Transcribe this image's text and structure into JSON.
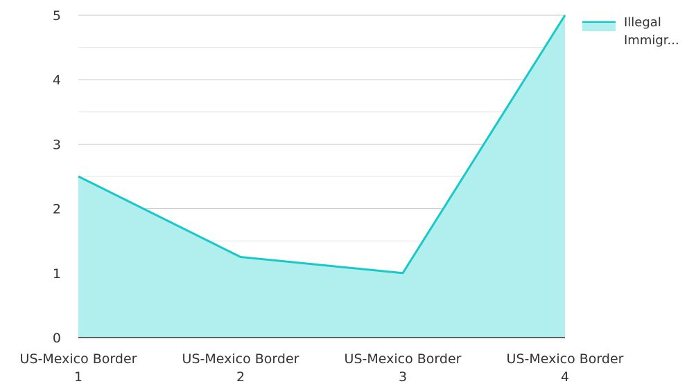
{
  "chart_data": {
    "type": "area",
    "title": "",
    "xlabel": "",
    "ylabel": "",
    "categories": [
      [
        "US-Mexico Border",
        "1"
      ],
      [
        "US-Mexico Border",
        "2"
      ],
      [
        "US-Mexico Border",
        "3"
      ],
      [
        "US-Mexico Border",
        "4"
      ]
    ],
    "series": [
      {
        "name": "Illegal Immigr...",
        "name_lines": [
          "Illegal",
          "Immigr..."
        ],
        "values": [
          2.5,
          1.25,
          1,
          5
        ],
        "line_color": "#19c8c8",
        "fill_color": "#b1eeee"
      }
    ],
    "ylim": [
      0,
      5
    ],
    "y_ticks": [
      "0",
      "1",
      "2",
      "3",
      "4",
      "5"
    ],
    "grid": true,
    "legend": "top-right"
  }
}
